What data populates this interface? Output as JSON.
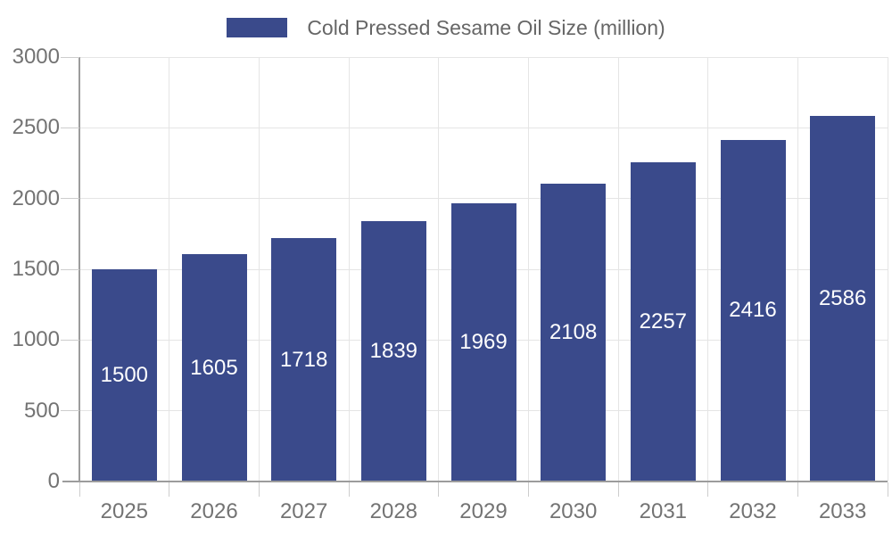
{
  "chart_data": {
    "type": "bar",
    "title": "Cold Pressed Sesame Oil Size (million)",
    "series_name": "Cold Pressed Sesame Oil Size (million)",
    "categories": [
      "2025",
      "2026",
      "2027",
      "2028",
      "2029",
      "2030",
      "2031",
      "2032",
      "2033"
    ],
    "values": [
      1500,
      1605,
      1718,
      1839,
      1969,
      2108,
      2257,
      2416,
      2586
    ],
    "xlabel": "",
    "ylabel": "",
    "ylim": [
      0,
      3000
    ],
    "yticks": [
      0,
      500,
      1000,
      1500,
      2000,
      2500,
      3000
    ],
    "grid": true,
    "legend_position": "top",
    "value_labels_inside_bars": true,
    "colors": {
      "bar": "#3A4A8B",
      "bar_label": "#FFFFFF",
      "axis_label": "#737373",
      "legend_text": "#666666",
      "gridline": "#E5E5E5",
      "axis_line": "#9C9C9C",
      "tick": "#CDCDCD",
      "background": "#FFFFFF"
    }
  }
}
